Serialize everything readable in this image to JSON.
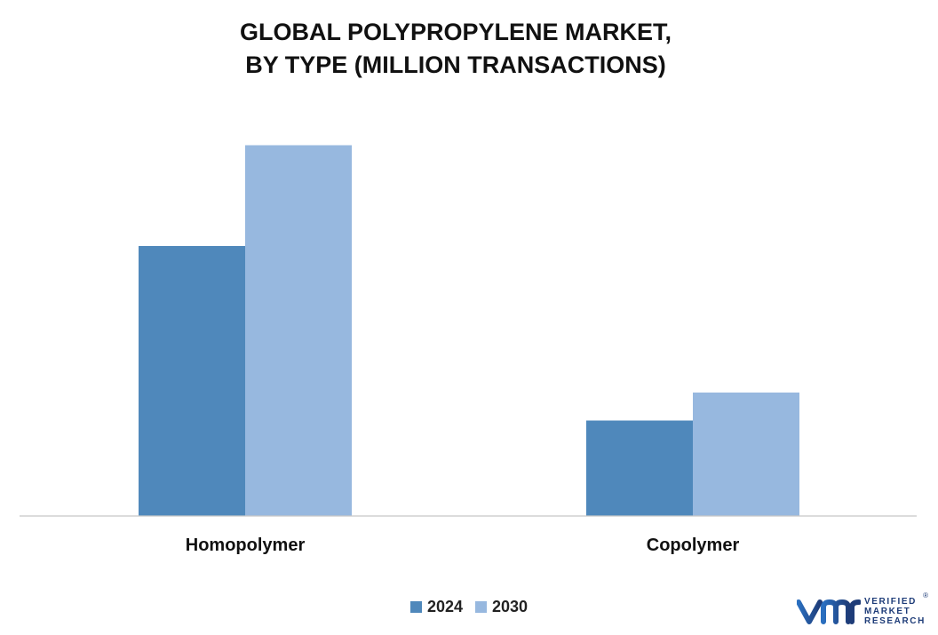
{
  "chart_data": {
    "type": "bar",
    "title_lines": [
      "GLOBAL POLYPROPYLENE MARKET,",
      "BY TYPE (MILLION TRANSACTIONS)"
    ],
    "categories": [
      "Homopolymer",
      "Copolymer"
    ],
    "series": [
      {
        "name": "2024",
        "color": "#4f88bb",
        "values": [
          60.8,
          21.5
        ]
      },
      {
        "name": "2030",
        "color": "#97b8df",
        "values": [
          83.5,
          27.8
        ]
      }
    ],
    "ylim": [
      0,
      100
    ],
    "grid": false,
    "legend": "bottom"
  },
  "logo": {
    "lines": [
      "VERIFIED",
      "MARKET",
      "RESEARCH"
    ],
    "registered": "®"
  }
}
